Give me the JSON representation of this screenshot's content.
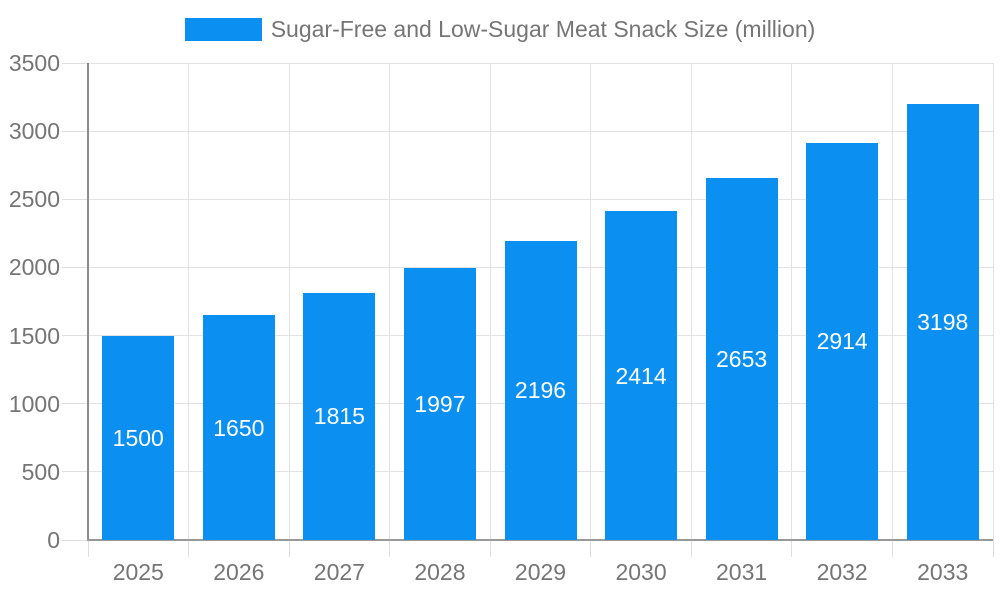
{
  "chart_data": {
    "type": "bar",
    "title": "Sugar-Free and Low-Sugar Meat Snack Size (million)",
    "categories": [
      "2025",
      "2026",
      "2027",
      "2028",
      "2029",
      "2030",
      "2031",
      "2032",
      "2033"
    ],
    "values": [
      1500,
      1650,
      1815,
      1997,
      2196,
      2414,
      2653,
      2914,
      3198
    ],
    "value_labels": [
      "1500",
      "1650",
      "1815",
      "1997",
      "2196",
      "2414",
      "2653",
      "2914",
      "3198"
    ],
    "ylim": [
      0,
      3500
    ],
    "ytick_step": 500,
    "ytick_labels": [
      "0",
      "500",
      "1000",
      "1500",
      "2000",
      "2500",
      "3000",
      "3500"
    ],
    "grid": true,
    "legend_position": "top-center",
    "value_label_position": "inside-center",
    "colors": {
      "bar": "#0b90f2",
      "grid": "#e3e3e3",
      "tick": "#dedede",
      "axis": "#8c8c8c",
      "tick_text": "#757575",
      "value_label_text": "#ffffff",
      "background": "#ffffff"
    }
  }
}
